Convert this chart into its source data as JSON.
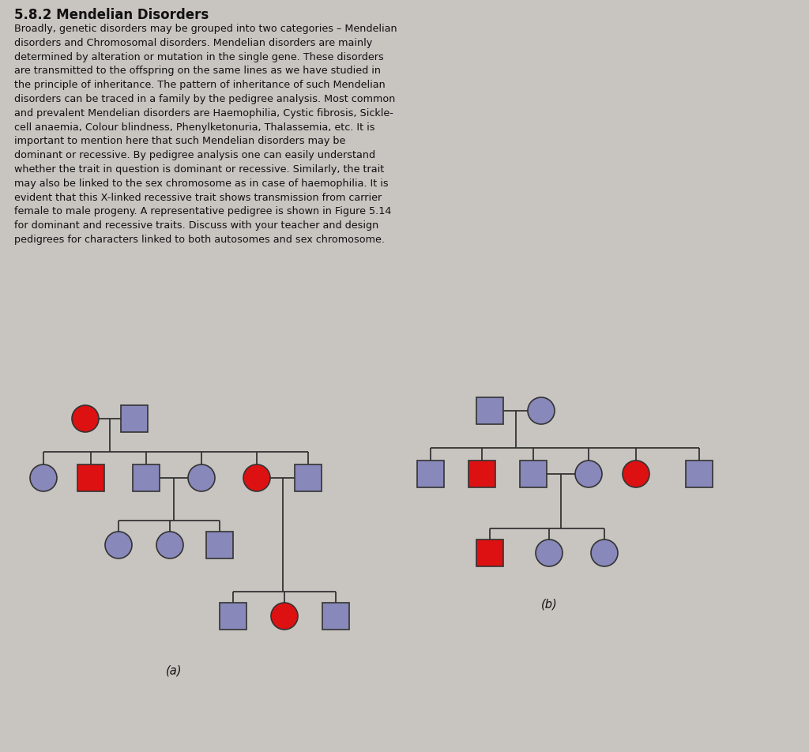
{
  "bg_color": "#c8c4c0",
  "title": "5.8.2 Mendelian Disorders",
  "body_lines": [
    "Broadly, genetic disorders may be grouped into two categories – Mendelian",
    "disorders and Chromosomal disorders. Mendelian disorders are mainly",
    "determined by alteration or mutation in the single gene. These disorders",
    "are transmitted to the offspring on the same lines as we have studied in",
    "the principle of inheritance. The pattern of inheritance of such Mendelian",
    "disorders can be traced in a family by the pedigree analysis. Most common",
    "and prevalent Mendelian disorders are Haemophilia, Cystic fibrosis, Sickle-",
    "cell anaemia, Colour blindness, Phenylketonuria, Thalassemia, etc. It is",
    "important to mention here that such Mendelian disorders may be",
    "dominant or recessive. By pedigree analysis one can easily understand",
    "whether the trait in question is dominant or recessive. Similarly, the trait",
    "may also be linked to the sex chromosome as in case of haemophilia. It is",
    "evident that this X-linked recessive trait shows transmission from carrier",
    "female to male progeny. A representative pedigree is shown in Figure 5.14",
    "for dominant and recessive traits. Discuss with your teacher and design",
    "pedigrees for characters linked to both autosomes and sex chromosome."
  ],
  "color_affected": "#dd1111",
  "color_normal": "#8888bb",
  "color_edge": "#333333",
  "color_line": "#333333",
  "color_text": "#111111",
  "label_a": "(a)",
  "label_b": "(b)"
}
